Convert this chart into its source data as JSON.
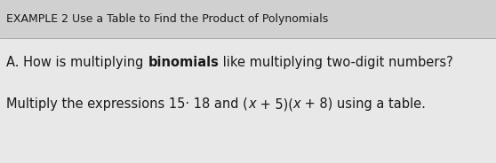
{
  "bg_color": "#d8d8d8",
  "content_bg_color": "#e8e8e8",
  "title_bar_color": "#d0d0d0",
  "title_text": "EXAMPLE 2 Use a Table to Find the Product of Polynomials",
  "title_fontsize": 9.0,
  "body_fontsize": 10.5,
  "line_a_prefix": "A. How is multiplying ",
  "line_a_bold": "binomials",
  "line_a_suffix": " like multiplying two-digit numbers?",
  "line_b_part1": "Multiply the expressions 15· 18 and (",
  "line_b_x1": "x",
  "line_b_part2": " + 5)(",
  "line_b_x2": "x",
  "line_b_part3": " + 8) using a table.",
  "separator_color": "#aaaaaa",
  "text_color": "#1a1a1a"
}
